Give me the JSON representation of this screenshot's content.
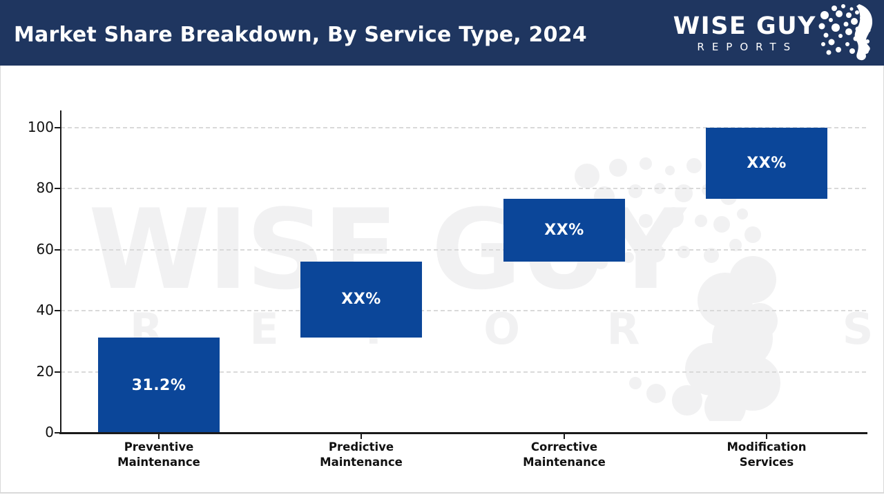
{
  "header": {
    "title": "Market Share Breakdown, By Service Type, 2024",
    "logo": {
      "line1": "WISE GUY",
      "line2": "REPORTS"
    }
  },
  "watermark": {
    "line1": "WISE GUY",
    "line2": "R E P O R T S"
  },
  "colors": {
    "header_bg": "#1f3660",
    "bar": "#0b4699",
    "grid": "#d9d9d9",
    "axis": "#1a1a1a",
    "value_label": "#ffffff",
    "watermark": "#f1f1f2"
  },
  "chart_data": {
    "type": "bar",
    "subtype": "waterfall",
    "title": "Market Share Breakdown, By Service Type, 2024",
    "categories": [
      {
        "line1": "Preventive",
        "line2": "Maintenance"
      },
      {
        "line1": "Predictive",
        "line2": "Maintenance"
      },
      {
        "line1": "Corrective",
        "line2": "Maintenance"
      },
      {
        "line1": "Modification",
        "line2": "Services"
      }
    ],
    "segments": [
      {
        "category": "Preventive Maintenance",
        "start": 0,
        "end": 31.2,
        "label": "31.2%"
      },
      {
        "category": "Predictive Maintenance",
        "start": 31.2,
        "end": 56.2,
        "label": "XX%"
      },
      {
        "category": "Corrective Maintenance",
        "start": 56.2,
        "end": 76.6,
        "label": "XX%"
      },
      {
        "category": "Modification Services",
        "start": 76.6,
        "end": 100,
        "label": "XX%"
      }
    ],
    "yticks": [
      0,
      20,
      40,
      60,
      80,
      100
    ],
    "ylim": [
      0,
      105
    ],
    "xlabel": "",
    "ylabel": "",
    "grid": "horizontal-dashed",
    "legend": "none"
  }
}
